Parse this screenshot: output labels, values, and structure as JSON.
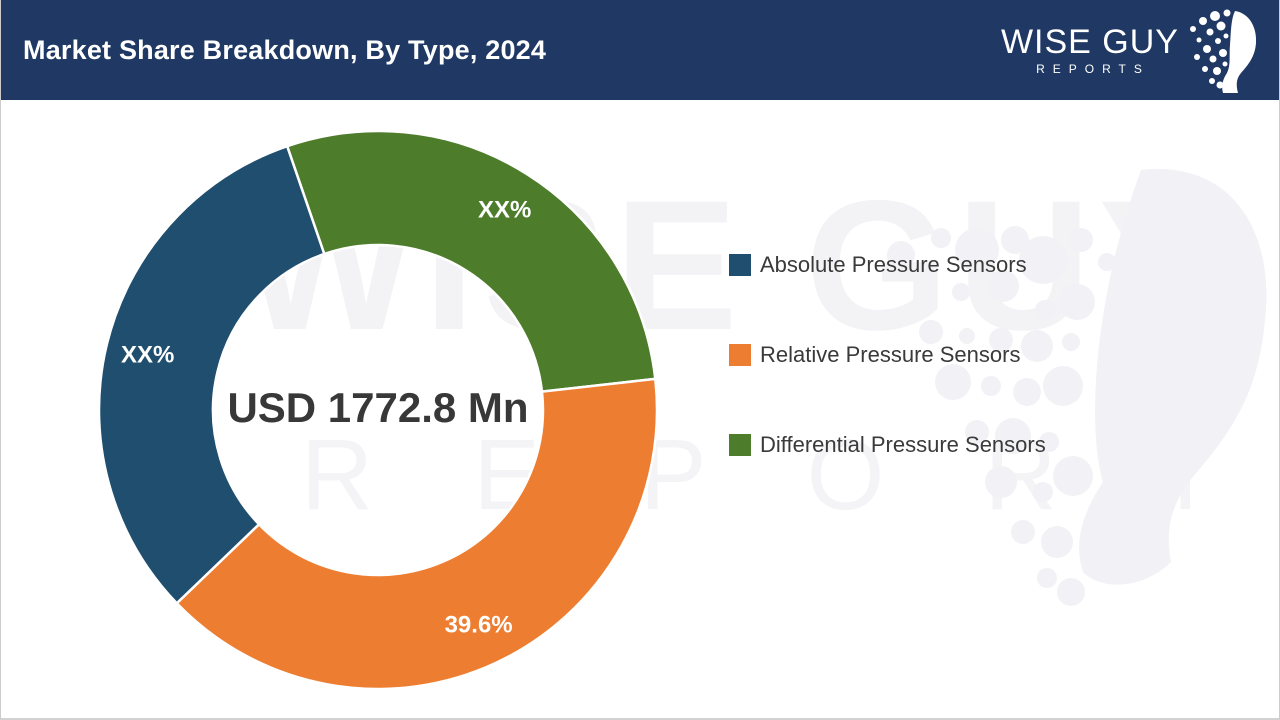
{
  "header": {
    "title": "Market Share Breakdown, By Type, 2024",
    "background_color": "#1F3864",
    "brand": {
      "name": "WISE GUY",
      "sub": "REPORTS"
    }
  },
  "watermark": {
    "line1": "WISE GUY",
    "line2": "REPORTS"
  },
  "chart_data": {
    "type": "pie",
    "donut": true,
    "title": "Market Share Breakdown, By Type, 2024",
    "center_label": "USD 1772.8 Mn",
    "legend_position": "right",
    "start_angle_deg_clockwise_from_top": -19,
    "draw_order_clockwise": [
      "Differential Pressure Sensors",
      "Relative Pressure Sensors",
      "Absolute Pressure Sensors"
    ],
    "slices": [
      {
        "name": "Absolute Pressure Sensors",
        "label": "XX%",
        "value_pct": 31.9,
        "color": "#1F4E6E"
      },
      {
        "name": "Relative Pressure Sensors",
        "label": "39.6%",
        "value_pct": 39.6,
        "color": "#ED7D31"
      },
      {
        "name": "Differential Pressure Sensors",
        "label": "XX%",
        "value_pct": 28.5,
        "color": "#4D7C2A"
      }
    ]
  }
}
